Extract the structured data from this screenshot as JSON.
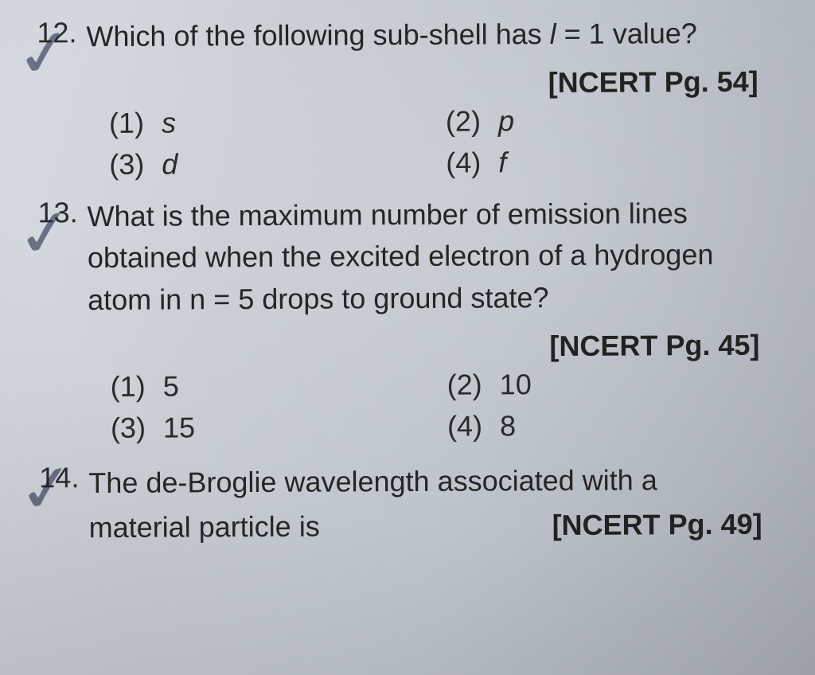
{
  "q12": {
    "number": "12.",
    "text_pre": "Which of the following sub-shell has ",
    "var": "l",
    "text_post": " = 1 value?",
    "ref": "[NCERT Pg. 54]",
    "options": {
      "a": {
        "label": "(1)",
        "value": "s"
      },
      "b": {
        "label": "(2)",
        "value": "p"
      },
      "c": {
        "label": "(3)",
        "value": "d"
      },
      "d": {
        "label": "(4)",
        "value": "f"
      }
    }
  },
  "q13": {
    "number": "13.",
    "text": "What is the maximum number of emission lines obtained when the excited electron of a hydrogen atom in n = 5 drops to ground state?",
    "ref": "[NCERT Pg. 45]",
    "options": {
      "a": {
        "label": "(1)",
        "value": "5"
      },
      "b": {
        "label": "(2)",
        "value": "10"
      },
      "c": {
        "label": "(3)",
        "value": "15"
      },
      "d": {
        "label": "(4)",
        "value": "8"
      }
    }
  },
  "q14": {
    "number": "14.",
    "line1": "The de-Broglie wavelength associated with a",
    "line2": "material particle is",
    "ref": "[NCERT Pg. 49]"
  },
  "tick_glyph": "✓"
}
